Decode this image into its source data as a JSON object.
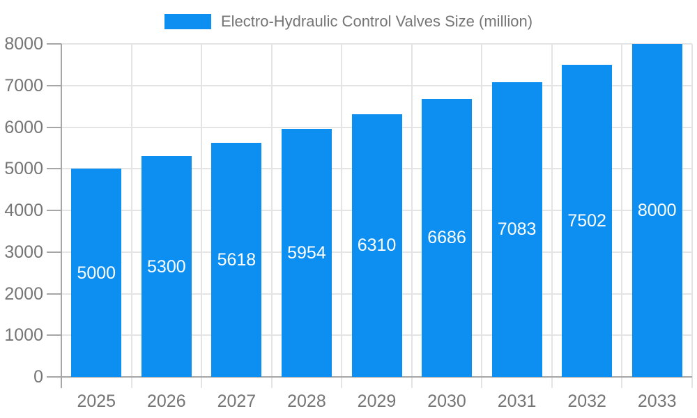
{
  "chart_data": {
    "type": "bar",
    "title": "Electro-Hydraulic Control Valves Size (million)",
    "categories": [
      "2025",
      "2026",
      "2027",
      "2028",
      "2029",
      "2030",
      "2031",
      "2032",
      "2033"
    ],
    "values": [
      5000,
      5300,
      5618,
      5954,
      6310,
      6686,
      7083,
      7502,
      8000
    ],
    "xlabel": "",
    "ylabel": "",
    "ylim": [
      0,
      8000
    ],
    "yticks": [
      0,
      1000,
      2000,
      3000,
      4000,
      5000,
      6000,
      7000,
      8000
    ],
    "grid": true,
    "legend_position": "top",
    "value_labels": "inside-center",
    "colors": {
      "bar": "#0d8ff2",
      "value_label": "#ffffff",
      "axis_label": "#757575",
      "axis_line": "#a6a6a6",
      "grid": "#e4e4e4",
      "background": "#ffffff"
    }
  }
}
